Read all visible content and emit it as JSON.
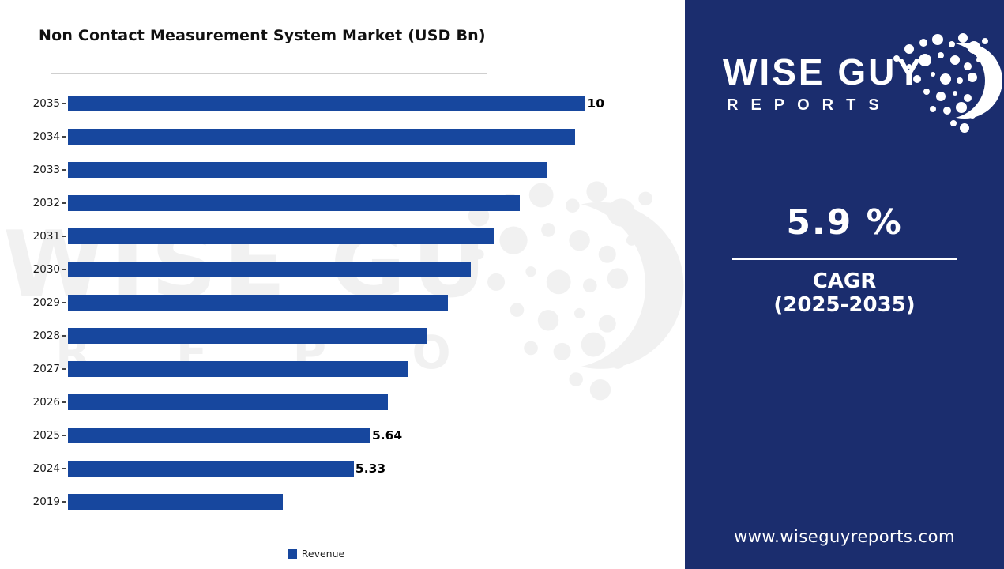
{
  "chart": {
    "legend_label": "Revenue"
  },
  "chart_data": {
    "type": "bar",
    "orientation": "horizontal",
    "title": "Non Contact Measurement System Market (USD Bn)",
    "categories": [
      "2035",
      "2034",
      "2033",
      "2032",
      "2031",
      "2030",
      "2029",
      "2028",
      "2027",
      "2026",
      "2025",
      "2024",
      "2019"
    ],
    "values": [
      10,
      9.45,
      8.92,
      8.43,
      7.96,
      7.51,
      7.09,
      6.7,
      6.33,
      5.97,
      5.64,
      5.33,
      4.0
    ],
    "bar_labels": [
      "10",
      "",
      "",
      "",
      "",
      "",
      "",
      "",
      "",
      "",
      "5.64",
      "5.33",
      ""
    ],
    "xlim": [
      0,
      10
    ],
    "grid": false,
    "legend": [
      "Revenue"
    ],
    "legend_position": "bottom-center",
    "bar_color": "#17479e"
  },
  "panel": {
    "bg_color": "#1b2d6e",
    "logo_line1": "WISE GUY",
    "logo_line2": "REPORTS",
    "cagr_value": "5.9 %",
    "cagr_label_line1": "CAGR",
    "cagr_label_line2": "(2025-2035)",
    "website": "www.wiseguyreports.com"
  },
  "watermark": {
    "line1": "WISE GU",
    "line2": "R E P O"
  }
}
